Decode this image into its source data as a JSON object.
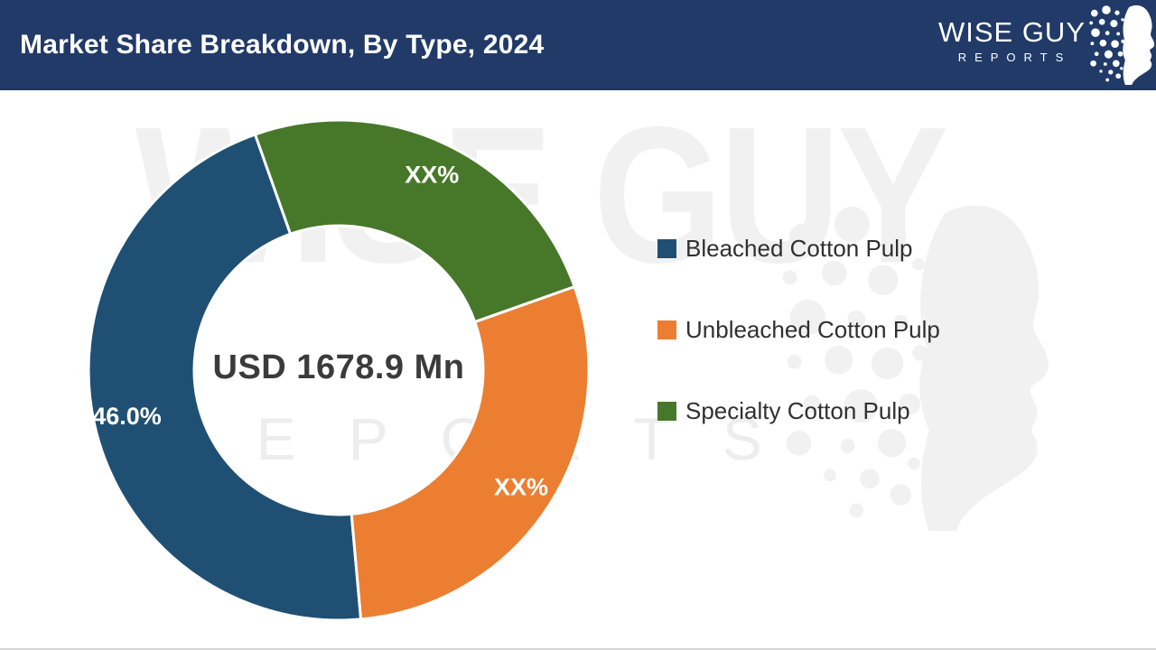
{
  "header": {
    "title": "Market Share Breakdown, By Type, 2024",
    "logo": {
      "wordmark": "WISE GUY",
      "subtitle": "REPORTS"
    }
  },
  "watermark": {
    "line1": "WISE GUY",
    "line2": "REPORTS"
  },
  "chart_data": {
    "type": "donut",
    "title": "Market Share Breakdown, By Type, 2024",
    "center_label": "USD 1678.9 Mn",
    "start_angle_deg": 109.5,
    "direction": "counterclockwise",
    "legend_position": "right",
    "segments": [
      {
        "label": "Bleached Cotton Pulp",
        "value_pct": 46.0,
        "display_label": "46.0%",
        "color": "#1F5074"
      },
      {
        "label": "Unbleached Cotton Pulp",
        "value_pct": 29.0,
        "display_label": "XX%",
        "color": "#EC7E32"
      },
      {
        "label": "Specialty Cotton Pulp",
        "value_pct": 25.0,
        "display_label": "XX%",
        "color": "#47782A"
      }
    ]
  },
  "colors": {
    "header_bg": "#213A68",
    "watermark": "#F1F1F1",
    "center_text": "#3B3B3B",
    "legend_text": "#303030",
    "segment_divider": "#FFFFFF"
  }
}
